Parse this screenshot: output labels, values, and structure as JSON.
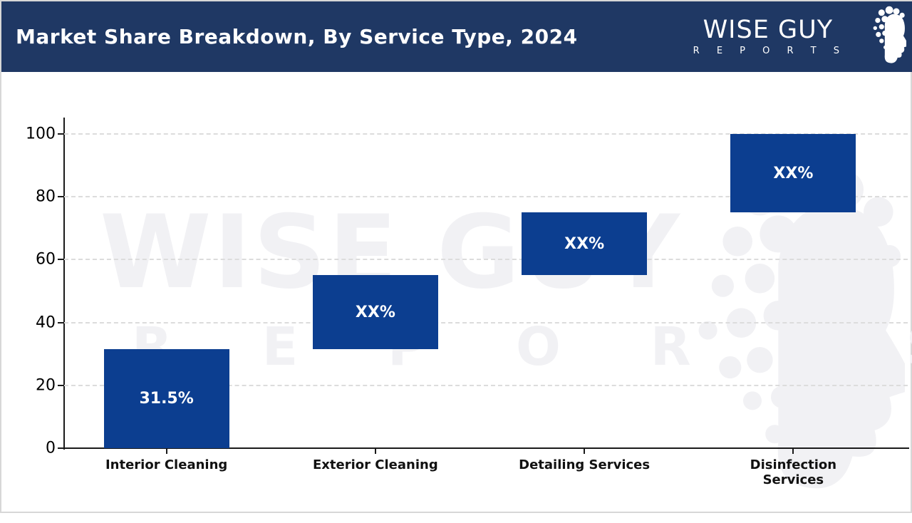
{
  "header": {
    "title": "Market Share Breakdown, By Service Type, 2024",
    "logo_line1": "WISE GUY",
    "logo_line2": "R E P O R T S"
  },
  "watermark": {
    "line1": "WISE GUY",
    "line2": "R E P O R T S"
  },
  "colors": {
    "header_bg": "#1f3864",
    "bar": "#0c3e90",
    "bar_label": "#ffffff",
    "grid": "#dcdcdc",
    "axis": "#1a1a1a",
    "watermark": "#f1f1f4"
  },
  "chart_data": {
    "type": "bar",
    "subtype": "waterfall",
    "title": "Market Share Breakdown, By Service Type, 2024",
    "categories": [
      "Interior Cleaning",
      "Exterior Cleaning",
      "Detailing Services",
      "Disinfection Services"
    ],
    "series": [
      {
        "name": "Market Share (%)",
        "segments": [
          {
            "category": "Interior Cleaning",
            "start": 0,
            "end": 31.5,
            "label": "31.5%"
          },
          {
            "category": "Exterior Cleaning",
            "start": 31.5,
            "end": 55,
            "label": "XX%"
          },
          {
            "category": "Detailing Services",
            "start": 55,
            "end": 75,
            "label": "XX%"
          },
          {
            "category": "Disinfection Services",
            "start": 75,
            "end": 100,
            "label": "XX%"
          }
        ]
      }
    ],
    "xlabel": "",
    "ylabel": "",
    "ylim": [
      0,
      105
    ],
    "yticks": [
      0,
      20,
      40,
      60,
      80,
      100
    ],
    "grid": "horizontal-dashed",
    "legend": "none",
    "bar_width_ratio": 0.6
  }
}
